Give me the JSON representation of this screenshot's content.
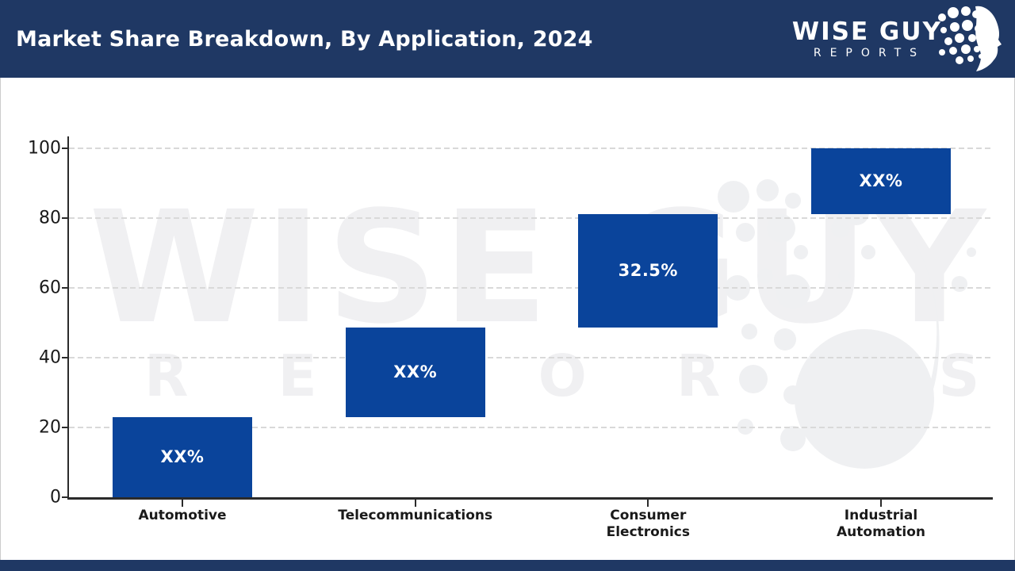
{
  "header": {
    "title": "Market Share Breakdown, By Application, 2024",
    "logo_line1": "WISE GUY",
    "logo_line2": "REPORTS"
  },
  "watermark": {
    "line1": "WISE GUY",
    "line2": "R E P O R T S"
  },
  "colors": {
    "header_bg": "#1f3864",
    "bar": "#0a449b",
    "bar_label": "#ffffff",
    "gridline": "#d9d9d9",
    "watermark": "#f0f0f2"
  },
  "chart_data": {
    "type": "bar",
    "variant": "waterfall",
    "title": "Market Share Breakdown, By Application, 2024",
    "categories": [
      "Automotive",
      "Telecommunications",
      "Consumer Electronics",
      "Industrial Automation"
    ],
    "bar_labels": [
      "XX%",
      "XX%",
      "32.5%",
      "XX%"
    ],
    "bar_starts": [
      0,
      23,
      48.75,
      81.25
    ],
    "bar_ends": [
      23,
      48.75,
      81.25,
      100
    ],
    "values": [
      23,
      25.75,
      32.5,
      18.75
    ],
    "yticks": [
      0,
      20,
      40,
      60,
      80,
      100
    ],
    "ylim": [
      0,
      103
    ],
    "xlabel": "",
    "ylabel": "",
    "grid": "horizontal-dashed",
    "legend": "none",
    "bar_color": "#0a449b"
  }
}
